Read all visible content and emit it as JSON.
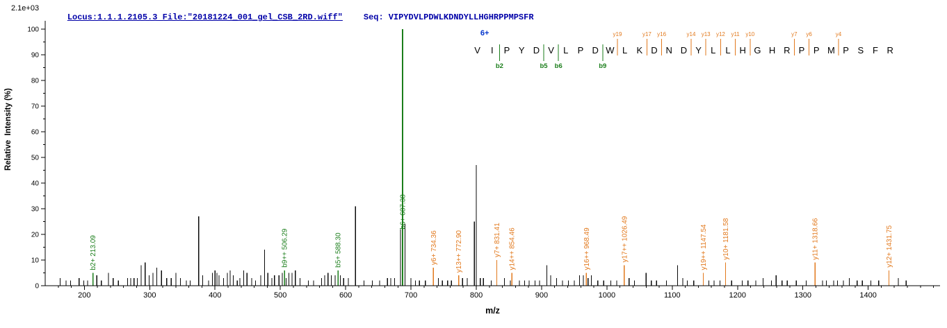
{
  "header": {
    "locus_file": "Locus:1.1.1.2105.3 File:\"20181224_001_gel_CSB_2RD.wiff\"",
    "seq_label": "Seq:",
    "sequence": "VIPYDVLPDWLKDNDYLLHGHRPPMPSFR"
  },
  "chart_data": {
    "type": "bar",
    "subtype": "ms2-fragment-spectrum",
    "title": "",
    "xlabel": "m/z",
    "ylabel": "Relative  Intensity (%)",
    "max_intensity_label": "2.1e+03",
    "xlim": [
      140,
      1510
    ],
    "ylim": [
      0,
      100
    ],
    "x_major_ticks": [
      200,
      300,
      400,
      500,
      600,
      700,
      800,
      900,
      1000,
      1100,
      1200,
      1300,
      1400
    ],
    "x_minor_step": 20,
    "y_major_ticks": [
      0,
      10,
      20,
      30,
      40,
      50,
      60,
      70,
      80,
      90,
      100
    ],
    "y_minor_step": 5,
    "grid": false,
    "legend": "none",
    "colors": {
      "b_ion": "#1b7e1b",
      "y_ion": "#e2791d",
      "peak": "#0a0a0a",
      "header_text": "#0000a8",
      "charge": "#0033cc"
    },
    "precursor_charge_label": "6+",
    "peptide": {
      "residues": [
        "V",
        "I",
        "P",
        "Y",
        "D",
        "V",
        "L",
        "P",
        "D",
        "W",
        "L",
        "K",
        "D",
        "N",
        "D",
        "Y",
        "L",
        "L",
        "H",
        "G",
        "H",
        "R",
        "P",
        "P",
        "M",
        "P",
        "S",
        "F",
        "R"
      ],
      "b_ion_boundaries": [
        {
          "after": 2,
          "label": "b2"
        },
        {
          "after": 5,
          "label": "b5"
        },
        {
          "after": 6,
          "label": "b6"
        },
        {
          "after": 9,
          "label": "b9"
        }
      ],
      "y_ion_boundaries": [
        {
          "after": 10,
          "label": "y19"
        },
        {
          "after": 12,
          "label": "y17"
        },
        {
          "after": 13,
          "label": "y16"
        },
        {
          "after": 15,
          "label": "y14"
        },
        {
          "after": 16,
          "label": "y13"
        },
        {
          "after": 17,
          "label": "y12"
        },
        {
          "after": 18,
          "label": "y11"
        },
        {
          "after": 19,
          "label": "y10"
        },
        {
          "after": 22,
          "label": "y7"
        },
        {
          "after": 23,
          "label": "y6"
        },
        {
          "after": 25,
          "label": "y4"
        }
      ]
    },
    "labeled_peaks": [
      {
        "mz": 213.09,
        "intensity": 5,
        "label": "b2+ 213.09",
        "type": "b"
      },
      {
        "mz": 506.29,
        "intensity": 6,
        "label": "b9++ 506.29",
        "type": "b"
      },
      {
        "mz": 588.3,
        "intensity": 6,
        "label": "b5+ 588.30",
        "type": "b"
      },
      {
        "mz": 687.38,
        "intensity": 100,
        "label": "b6+ 687.38",
        "type": "b"
      },
      {
        "mz": 734.36,
        "intensity": 7,
        "label": "y6+ 734.36",
        "type": "y"
      },
      {
        "mz": 772.9,
        "intensity": 4,
        "label": "y13++ 772.90",
        "type": "y"
      },
      {
        "mz": 831.41,
        "intensity": 10,
        "label": "y7+ 831.41",
        "type": "y"
      },
      {
        "mz": 854.46,
        "intensity": 5,
        "label": "y14++ 854.46",
        "type": "y"
      },
      {
        "mz": 968.49,
        "intensity": 5,
        "label": "y16++ 968.49",
        "type": "y"
      },
      {
        "mz": 1026.49,
        "intensity": 8,
        "label": "y17++ 1026.49",
        "type": "y"
      },
      {
        "mz": 1147.54,
        "intensity": 5,
        "label": "y19++ 1147.54",
        "type": "y"
      },
      {
        "mz": 1181.58,
        "intensity": 9,
        "label": "y10+ 1181.58",
        "type": "y"
      },
      {
        "mz": 1318.66,
        "intensity": 9,
        "label": "y11+ 1318.66",
        "type": "y"
      },
      {
        "mz": 1431.75,
        "intensity": 6,
        "label": "y12+ 1431.75",
        "type": "y"
      }
    ],
    "unlabeled_peaks": [
      [
        163,
        3
      ],
      [
        172,
        2
      ],
      [
        179,
        2
      ],
      [
        192,
        3
      ],
      [
        199,
        2
      ],
      [
        205,
        2
      ],
      [
        219,
        4
      ],
      [
        226,
        2
      ],
      [
        237,
        5
      ],
      [
        244,
        3
      ],
      [
        252,
        2
      ],
      [
        266,
        3
      ],
      [
        271,
        3
      ],
      [
        276,
        3
      ],
      [
        281,
        3
      ],
      [
        287,
        8
      ],
      [
        293,
        9
      ],
      [
        299,
        4
      ],
      [
        305,
        5
      ],
      [
        311,
        7
      ],
      [
        318,
        6
      ],
      [
        326,
        3
      ],
      [
        333,
        3
      ],
      [
        340,
        5
      ],
      [
        347,
        3
      ],
      [
        356,
        2
      ],
      [
        362,
        2
      ],
      [
        375,
        27
      ],
      [
        381,
        4
      ],
      [
        390,
        2
      ],
      [
        396,
        5
      ],
      [
        400,
        6
      ],
      [
        403,
        5
      ],
      [
        406,
        4
      ],
      [
        413,
        3
      ],
      [
        419,
        5
      ],
      [
        423,
        6
      ],
      [
        428,
        4
      ],
      [
        434,
        2
      ],
      [
        438,
        3
      ],
      [
        444,
        6
      ],
      [
        449,
        5
      ],
      [
        456,
        3
      ],
      [
        462,
        2
      ],
      [
        470,
        4
      ],
      [
        476,
        14
      ],
      [
        481,
        5
      ],
      [
        487,
        3
      ],
      [
        491,
        4
      ],
      [
        498,
        4
      ],
      [
        503,
        5
      ],
      [
        509,
        3
      ],
      [
        513,
        5
      ],
      [
        518,
        5
      ],
      [
        523,
        6
      ],
      [
        530,
        3
      ],
      [
        543,
        2
      ],
      [
        551,
        2
      ],
      [
        563,
        3
      ],
      [
        568,
        4
      ],
      [
        573,
        5
      ],
      [
        578,
        4
      ],
      [
        584,
        4
      ],
      [
        592,
        4
      ],
      [
        597,
        3
      ],
      [
        604,
        3
      ],
      [
        615,
        31
      ],
      [
        628,
        2
      ],
      [
        641,
        2
      ],
      [
        652,
        2
      ],
      [
        664,
        3
      ],
      [
        669,
        3
      ],
      [
        675,
        3
      ],
      [
        684,
        22
      ],
      [
        691,
        24
      ],
      [
        700,
        3
      ],
      [
        707,
        2
      ],
      [
        713,
        2
      ],
      [
        722,
        2
      ],
      [
        742,
        3
      ],
      [
        748,
        2
      ],
      [
        756,
        2
      ],
      [
        762,
        2
      ],
      [
        779,
        3
      ],
      [
        786,
        3
      ],
      [
        797,
        25
      ],
      [
        800,
        47
      ],
      [
        806,
        3
      ],
      [
        811,
        3
      ],
      [
        823,
        2
      ],
      [
        843,
        3
      ],
      [
        852,
        2
      ],
      [
        866,
        2
      ],
      [
        874,
        2
      ],
      [
        881,
        2
      ],
      [
        890,
        2
      ],
      [
        897,
        2
      ],
      [
        908,
        8
      ],
      [
        914,
        4
      ],
      [
        923,
        3
      ],
      [
        932,
        2
      ],
      [
        941,
        2
      ],
      [
        950,
        2
      ],
      [
        958,
        4
      ],
      [
        964,
        4
      ],
      [
        971,
        3
      ],
      [
        976,
        4
      ],
      [
        986,
        2
      ],
      [
        995,
        2
      ],
      [
        1006,
        2
      ],
      [
        1015,
        2
      ],
      [
        1034,
        3
      ],
      [
        1042,
        2
      ],
      [
        1060,
        5
      ],
      [
        1068,
        2
      ],
      [
        1076,
        2
      ],
      [
        1091,
        2
      ],
      [
        1108,
        8
      ],
      [
        1116,
        3
      ],
      [
        1123,
        2
      ],
      [
        1133,
        2
      ],
      [
        1156,
        2
      ],
      [
        1164,
        2
      ],
      [
        1173,
        2
      ],
      [
        1191,
        2
      ],
      [
        1207,
        2
      ],
      [
        1216,
        2
      ],
      [
        1228,
        2
      ],
      [
        1239,
        3
      ],
      [
        1252,
        2
      ],
      [
        1259,
        4
      ],
      [
        1268,
        2
      ],
      [
        1276,
        2
      ],
      [
        1290,
        2
      ],
      [
        1305,
        2
      ],
      [
        1330,
        2
      ],
      [
        1336,
        2
      ],
      [
        1347,
        2
      ],
      [
        1353,
        2
      ],
      [
        1362,
        2
      ],
      [
        1371,
        3
      ],
      [
        1383,
        2
      ],
      [
        1391,
        2
      ],
      [
        1404,
        2
      ],
      [
        1416,
        2
      ],
      [
        1446,
        3
      ],
      [
        1458,
        2
      ]
    ]
  }
}
